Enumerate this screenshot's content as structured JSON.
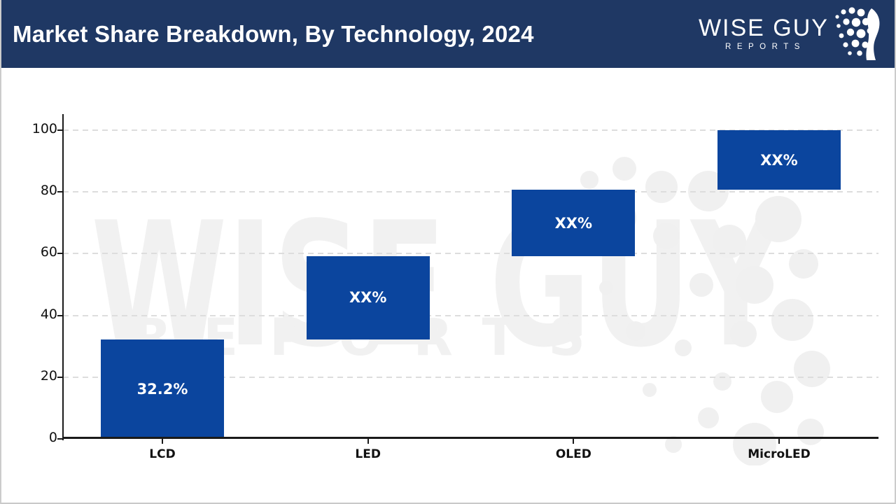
{
  "header": {
    "title": "Market Share Breakdown, By Technology, 2024",
    "logo": {
      "wordmark": "WISE GUY",
      "subtext": "REPORTS"
    }
  },
  "watermark": {
    "line1": "WISE GUY",
    "line2": "REPORTS"
  },
  "chart_data": {
    "type": "bar",
    "subtype": "waterfall",
    "title": "Market Share Breakdown, By Technology, 2024",
    "categories": [
      "LCD",
      "LED",
      "OLED",
      "MicroLED"
    ],
    "series": [
      {
        "name": "Market Share %",
        "segments": [
          {
            "category": "LCD",
            "start": 0,
            "end": 32.2,
            "label": "32.2%"
          },
          {
            "category": "LED",
            "start": 32.2,
            "end": 59.2,
            "label": "XX%"
          },
          {
            "category": "OLED",
            "start": 59.2,
            "end": 80.7,
            "label": "XX%"
          },
          {
            "category": "MicroLED",
            "start": 80.7,
            "end": 100,
            "label": "XX%"
          }
        ]
      }
    ],
    "xlabel": "",
    "ylabel": "",
    "ylim": [
      0,
      105
    ],
    "yticks": [
      0,
      20,
      40,
      60,
      80,
      100
    ],
    "grid": "horizontal-dashed",
    "legend": "none",
    "colors": {
      "bar": "#0b459e",
      "bar_label": "#ffffff",
      "axis": "#1a1a1a",
      "gridline": "#dddddd",
      "header_bg": "#1f3864",
      "watermark": "#f1f1f1",
      "text": "#111111",
      "border": "#cccccc"
    }
  }
}
